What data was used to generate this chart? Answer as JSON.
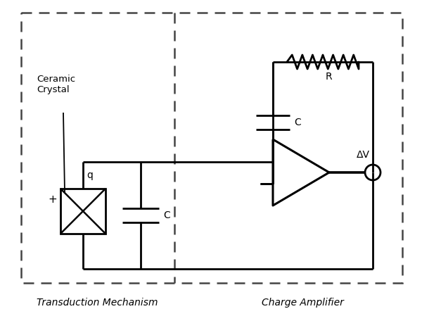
{
  "fig_width": 6.0,
  "fig_height": 4.66,
  "dpi": 100,
  "bg_color": "#ffffff",
  "line_color": "#000000",
  "line_width": 2.0,
  "label_transduction": "Transduction Mechanism",
  "label_charge_amp": "Charge Amplifier",
  "label_ceramic": "Ceramic\nCrystal",
  "label_q": "q",
  "label_c_left": "C",
  "label_c_feedback": "C",
  "label_r_feedback": "R",
  "label_delta_v": "ΔV",
  "label_plus": "+"
}
